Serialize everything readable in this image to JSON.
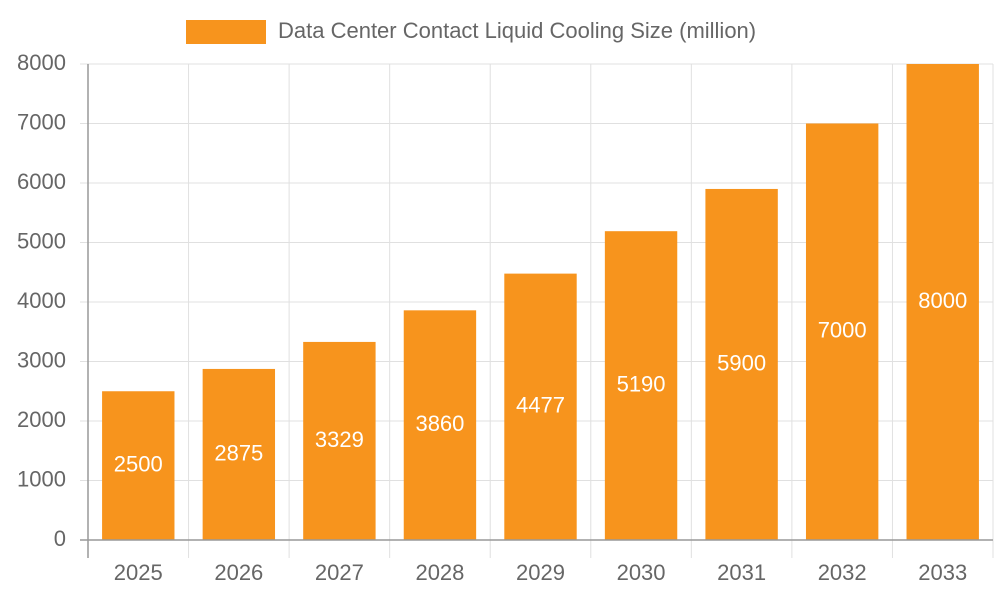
{
  "chart_data": {
    "type": "bar",
    "categories": [
      "2025",
      "2026",
      "2027",
      "2028",
      "2029",
      "2030",
      "2031",
      "2032",
      "2033"
    ],
    "series": [
      {
        "name": "Data Center Contact Liquid Cooling Size (million)",
        "color": "#f7941d",
        "values": [
          2500,
          2875,
          3329,
          3860,
          4477,
          5190,
          5900,
          7000,
          8000
        ]
      }
    ],
    "ylim": [
      0,
      8000
    ],
    "yticks": [
      0,
      1000,
      2000,
      3000,
      4000,
      5000,
      6000,
      7000,
      8000
    ],
    "grid": true,
    "legend": "top"
  }
}
